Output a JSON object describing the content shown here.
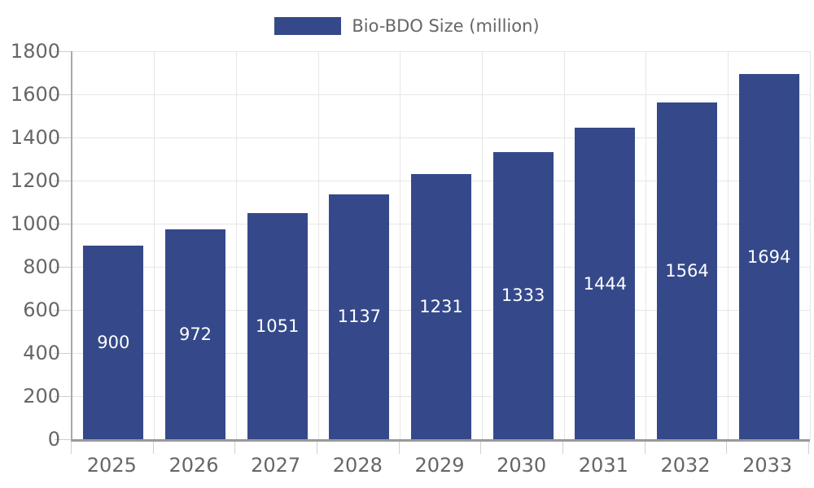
{
  "legend": {
    "label": "Bio-BDO Size (million)"
  },
  "chart_data": {
    "type": "bar",
    "title": "",
    "categories": [
      "2025",
      "2026",
      "2027",
      "2028",
      "2029",
      "2030",
      "2031",
      "2032",
      "2033"
    ],
    "series": [
      {
        "name": "Bio-BDO Size (million)",
        "values": [
          900,
          972,
          1051,
          1137,
          1231,
          1333,
          1444,
          1564,
          1694
        ]
      }
    ],
    "xlabel": "",
    "ylabel": "",
    "ylim": [
      0,
      1800
    ],
    "yticks": [
      0,
      200,
      400,
      600,
      800,
      1000,
      1200,
      1400,
      1600,
      1800
    ],
    "grid": true,
    "legend_position": "top",
    "bar_color": "#35498A",
    "bar_label_color": "#ffffff",
    "axis_text_color": "#666666",
    "gridline_color": "#e6e6e6"
  }
}
